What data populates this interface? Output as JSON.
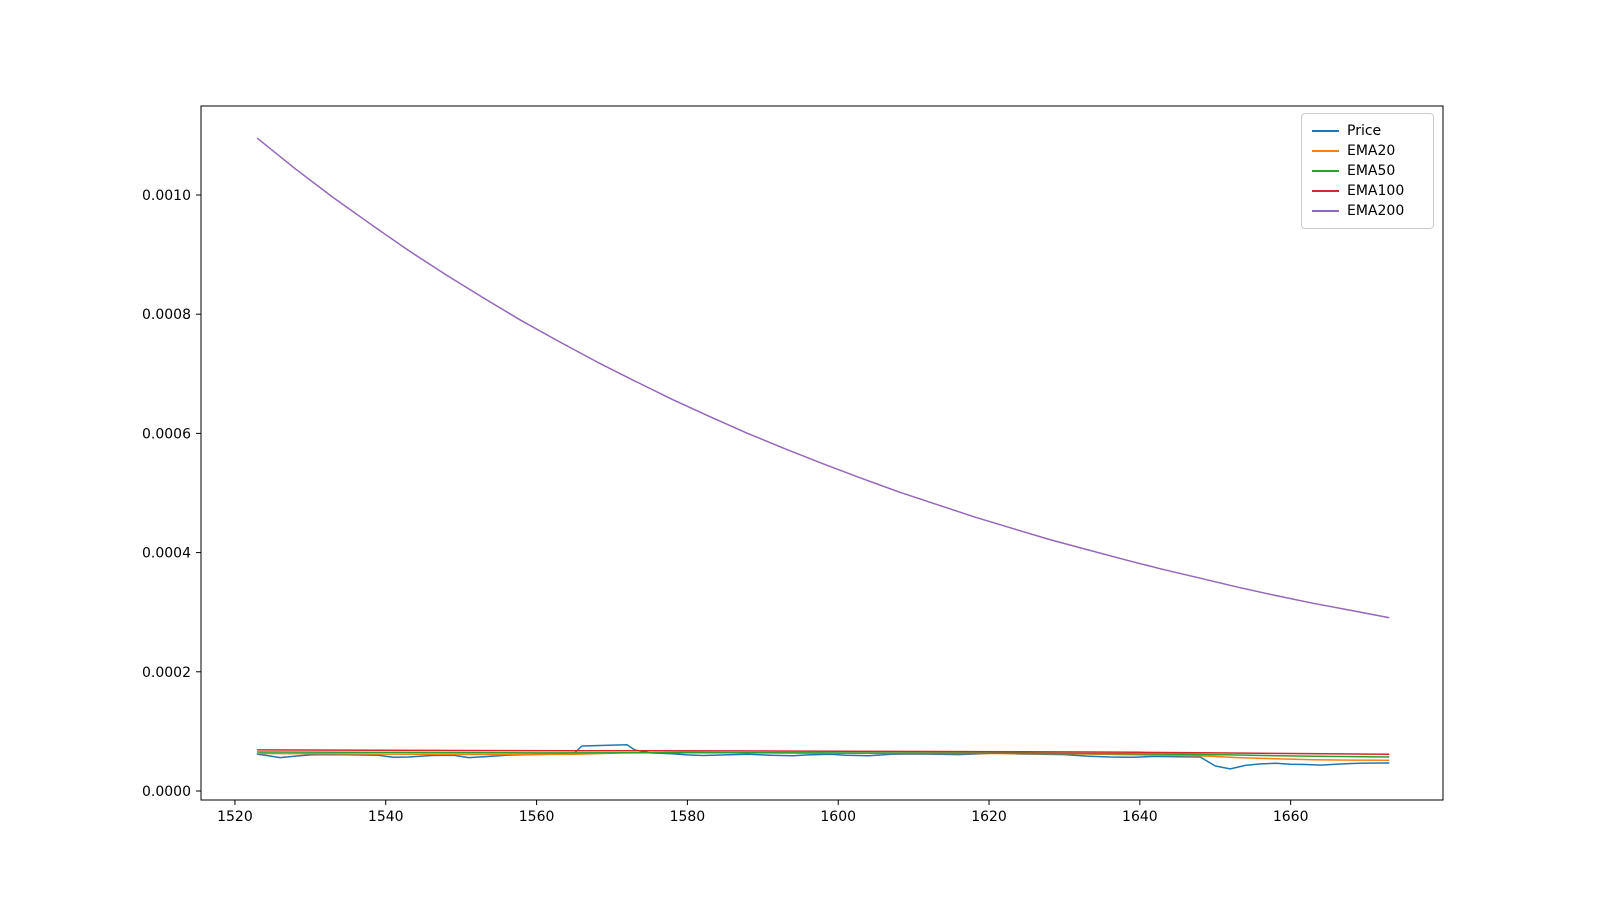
{
  "chart_data": {
    "type": "line",
    "title": "",
    "xlabel": "",
    "ylabel": "",
    "grid": false,
    "legend_position": "upper right",
    "xlim": [
      1515.5,
      1680.2
    ],
    "ylim": [
      -1.51e-05,
      0.0011493
    ],
    "x_ticks": [
      1520,
      1540,
      1560,
      1580,
      1600,
      1620,
      1640,
      1660
    ],
    "x_tick_labels": [
      "1520",
      "1540",
      "1560",
      "1580",
      "1600",
      "1620",
      "1640",
      "1660"
    ],
    "y_ticks": [
      0.0,
      0.0002,
      0.0004,
      0.0006,
      0.0008,
      0.001
    ],
    "y_tick_labels": [
      "0.0000",
      "0.0002",
      "0.0004",
      "0.0006",
      "0.0008",
      "0.0010"
    ],
    "series": [
      {
        "name": "Price",
        "color": "#1f77b4",
        "x": [
          1523,
          1524,
          1526,
          1528,
          1530,
          1533,
          1536,
          1539,
          1541,
          1543,
          1546,
          1549,
          1551,
          1553,
          1556,
          1559,
          1562,
          1565,
          1566,
          1569,
          1572,
          1573,
          1575,
          1578,
          1580,
          1582,
          1585,
          1588,
          1591,
          1594,
          1596,
          1599,
          1601,
          1604,
          1607,
          1610,
          1613,
          1616,
          1619,
          1621,
          1624,
          1627,
          1630,
          1633,
          1636,
          1639,
          1642,
          1645,
          1648,
          1650,
          1652,
          1654,
          1656,
          1658,
          1660,
          1662,
          1664,
          1666,
          1668,
          1670,
          1673
        ],
        "y": [
          6.15e-05,
          6e-05,
          5.6e-05,
          5.85e-05,
          6.05e-05,
          6.1e-05,
          6.05e-05,
          6e-05,
          5.65e-05,
          5.7e-05,
          5.95e-05,
          6e-05,
          5.6e-05,
          5.75e-05,
          6e-05,
          6.1e-05,
          6.15e-05,
          6.3e-05,
          7.55e-05,
          7.65e-05,
          7.75e-05,
          6.9e-05,
          6.4e-05,
          6.25e-05,
          6.05e-05,
          5.95e-05,
          6.05e-05,
          6.15e-05,
          6e-05,
          5.9e-05,
          6.05e-05,
          6.15e-05,
          6e-05,
          5.9e-05,
          6.15e-05,
          6.2e-05,
          6.15e-05,
          6.1e-05,
          6.25e-05,
          6.4e-05,
          6.2e-05,
          6.15e-05,
          6.1e-05,
          5.85e-05,
          5.7e-05,
          5.65e-05,
          5.8e-05,
          5.75e-05,
          5.7e-05,
          4.2e-05,
          3.7e-05,
          4.3e-05,
          4.55e-05,
          4.65e-05,
          4.5e-05,
          4.45e-05,
          4.35e-05,
          4.5e-05,
          4.62e-05,
          4.68e-05,
          4.7e-05
        ]
      },
      {
        "name": "EMA20",
        "color": "#ff7f0e",
        "x": [
          1523,
          1535,
          1545,
          1555,
          1565,
          1572,
          1580,
          1590,
          1600,
          1610,
          1620,
          1630,
          1640,
          1648,
          1653,
          1658,
          1663,
          1668,
          1673
        ],
        "y": [
          6.3e-05,
          6.22e-05,
          6.15e-05,
          6.12e-05,
          6.18e-05,
          6.4e-05,
          6.48e-05,
          6.4e-05,
          6.33e-05,
          6.3e-05,
          6.3e-05,
          6.25e-05,
          6.05e-05,
          5.9e-05,
          5.6e-05,
          5.4e-05,
          5.25e-05,
          5.18e-05,
          5.15e-05
        ]
      },
      {
        "name": "EMA50",
        "color": "#2ca02c",
        "x": [
          1523,
          1540,
          1560,
          1575,
          1590,
          1605,
          1620,
          1635,
          1645,
          1652,
          1658,
          1665,
          1673
        ],
        "y": [
          6.55e-05,
          6.48e-05,
          6.4e-05,
          6.42e-05,
          6.42e-05,
          6.38e-05,
          6.36e-05,
          6.28e-05,
          6.18e-05,
          6.05e-05,
          5.92e-05,
          5.8e-05,
          5.7e-05
        ]
      },
      {
        "name": "EMA100",
        "color": "#d62728",
        "x": [
          1523,
          1545,
          1565,
          1585,
          1605,
          1625,
          1640,
          1650,
          1660,
          1673
        ],
        "y": [
          6.9e-05,
          6.82e-05,
          6.76e-05,
          6.72e-05,
          6.65e-05,
          6.58e-05,
          6.5e-05,
          6.4e-05,
          6.3e-05,
          6.18e-05
        ]
      },
      {
        "name": "EMA200",
        "color": "#9467bd",
        "x": [
          1523,
          1528,
          1533,
          1538,
          1543,
          1548,
          1553,
          1558,
          1563,
          1568,
          1573,
          1578,
          1583,
          1588,
          1593,
          1598,
          1603,
          1608,
          1613,
          1618,
          1623,
          1628,
          1633,
          1638,
          1643,
          1648,
          1653,
          1658,
          1663,
          1668,
          1673
        ],
        "y": [
          0.001095,
          0.001044,
          0.000996,
          0.000951,
          0.000907,
          0.000866,
          0.000827,
          0.000789,
          0.000754,
          0.00072,
          0.000688,
          0.000657,
          0.000628,
          0.0006,
          0.000574,
          0.000549,
          0.000525,
          0.000502,
          0.000481,
          0.00046,
          0.000441,
          0.000422,
          0.000405,
          0.000388,
          0.000372,
          0.000357,
          0.000342,
          0.000328,
          0.000315,
          0.000303,
          0.000291
        ]
      }
    ]
  }
}
